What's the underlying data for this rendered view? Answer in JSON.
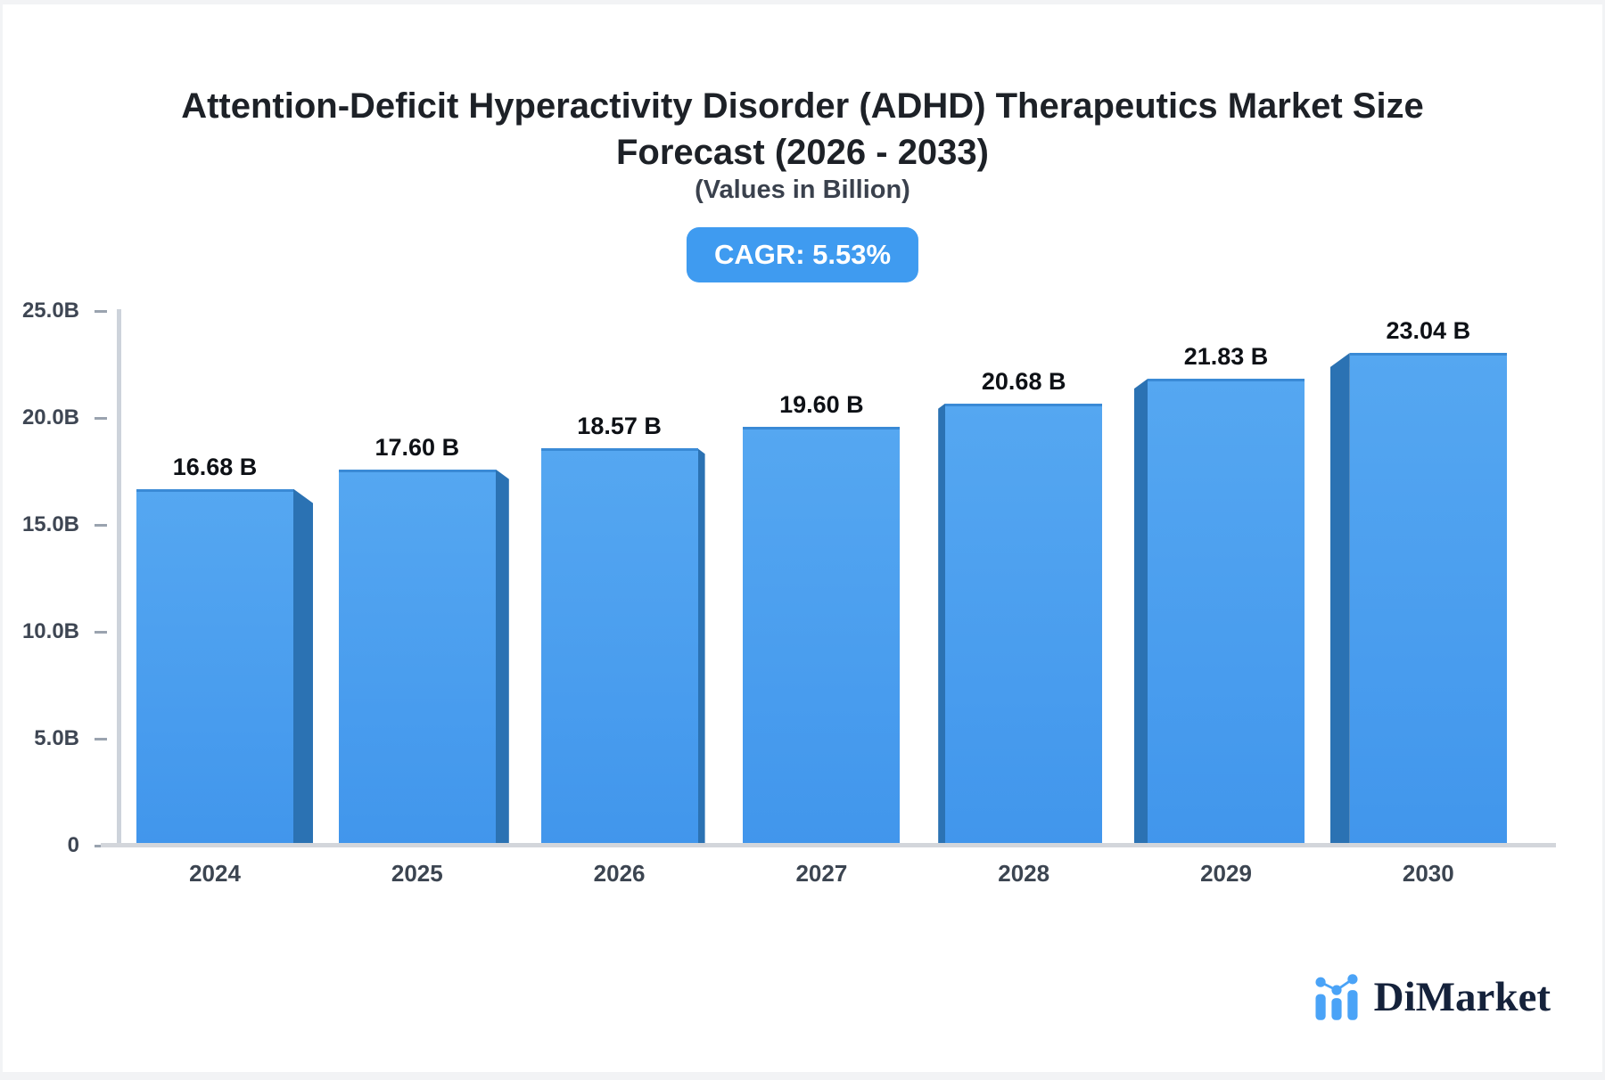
{
  "header": {
    "title_line1": "Attention-Deficit Hyperactivity Disorder (ADHD) Therapeutics Market Size",
    "title_line2": "Forecast (2026 - 2033)",
    "subtitle": "(Values in Billion)",
    "cagr_badge": "CAGR: 5.53%"
  },
  "chart_data": {
    "type": "bar",
    "title": "Attention-Deficit Hyperactivity Disorder (ADHD) Therapeutics Market Size Forecast (2026 - 2033)",
    "subtitle": "(Values in Billion)",
    "annotation": "CAGR: 5.53%",
    "categories": [
      "2024",
      "2025",
      "2026",
      "2027",
      "2028",
      "2029",
      "2030"
    ],
    "values": [
      16.68,
      17.6,
      18.57,
      19.6,
      20.68,
      21.83,
      23.04
    ],
    "value_labels": [
      "16.68 B",
      "17.60 B",
      "18.57 B",
      "19.60 B",
      "20.68 B",
      "21.83 B",
      "23.04 B"
    ],
    "unit": "Billion",
    "xlabel": "",
    "ylabel": "",
    "ylim": [
      0,
      25
    ],
    "y_ticks": [
      {
        "value": 0,
        "label": "0"
      },
      {
        "value": 5,
        "label": "5.0B"
      },
      {
        "value": 10,
        "label": "10.0B"
      },
      {
        "value": 15,
        "label": "15.0B"
      },
      {
        "value": 20,
        "label": "20.0B"
      },
      {
        "value": 25,
        "label": "25.0B"
      }
    ],
    "grid": false,
    "legend": false,
    "colors": {
      "bar_face_top": "#55a7f1",
      "bar_face_bottom": "#4196ec",
      "bar_side": "#2b72b3",
      "badge": "#3f9bf0",
      "axis": "#cdd3db"
    }
  },
  "footer": {
    "brand": "DiMarket"
  }
}
